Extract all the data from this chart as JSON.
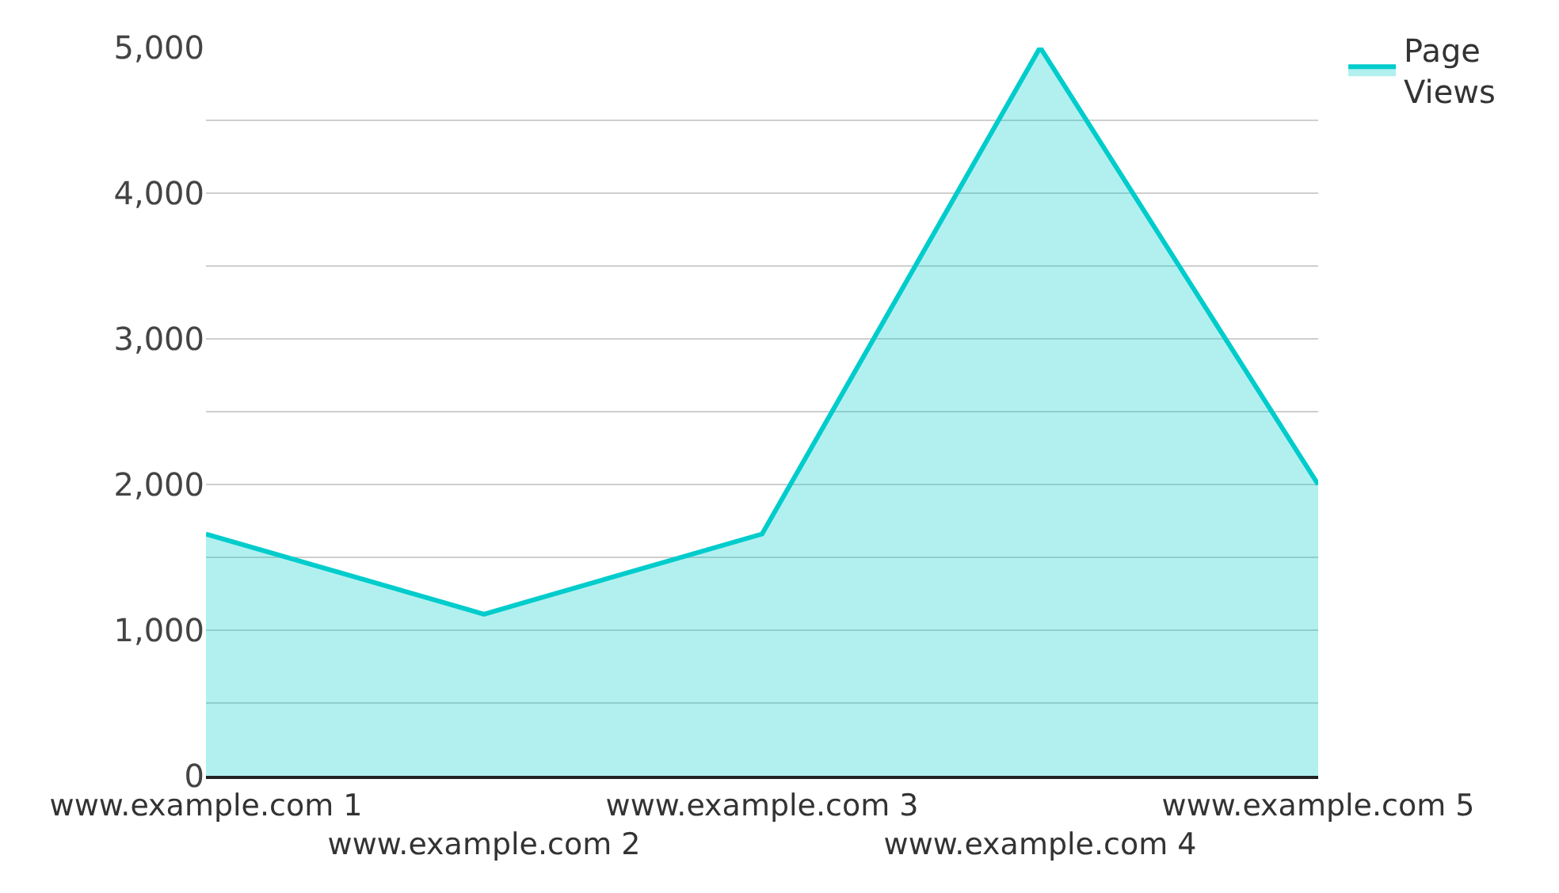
{
  "chart_data": {
    "type": "area",
    "categories": [
      "www.example.com 1",
      "www.example.com 2",
      "www.example.com 3",
      "www.example.com 4",
      "www.example.com 5"
    ],
    "series": [
      {
        "name": "Page Views",
        "color": "#00cccc",
        "values": [
          1660,
          1110,
          1660,
          5000,
          2000
        ]
      }
    ],
    "ylim": [
      0,
      5000
    ],
    "yticks": [
      0,
      {
        "value": 500,
        "label": null
      },
      {
        "value": 1000,
        "label": "1,000"
      },
      {
        "value": 1500,
        "label": null
      },
      {
        "value": 2000,
        "label": "2,000"
      },
      {
        "value": 2500,
        "label": null
      },
      {
        "value": 3000,
        "label": "3,000"
      },
      {
        "value": 3500,
        "label": null
      },
      {
        "value": 4000,
        "label": "4,000"
      },
      {
        "value": 4500,
        "label": null
      },
      {
        "value": 5000,
        "label": "5,000"
      }
    ],
    "grid": "y",
    "legend": "top right"
  }
}
